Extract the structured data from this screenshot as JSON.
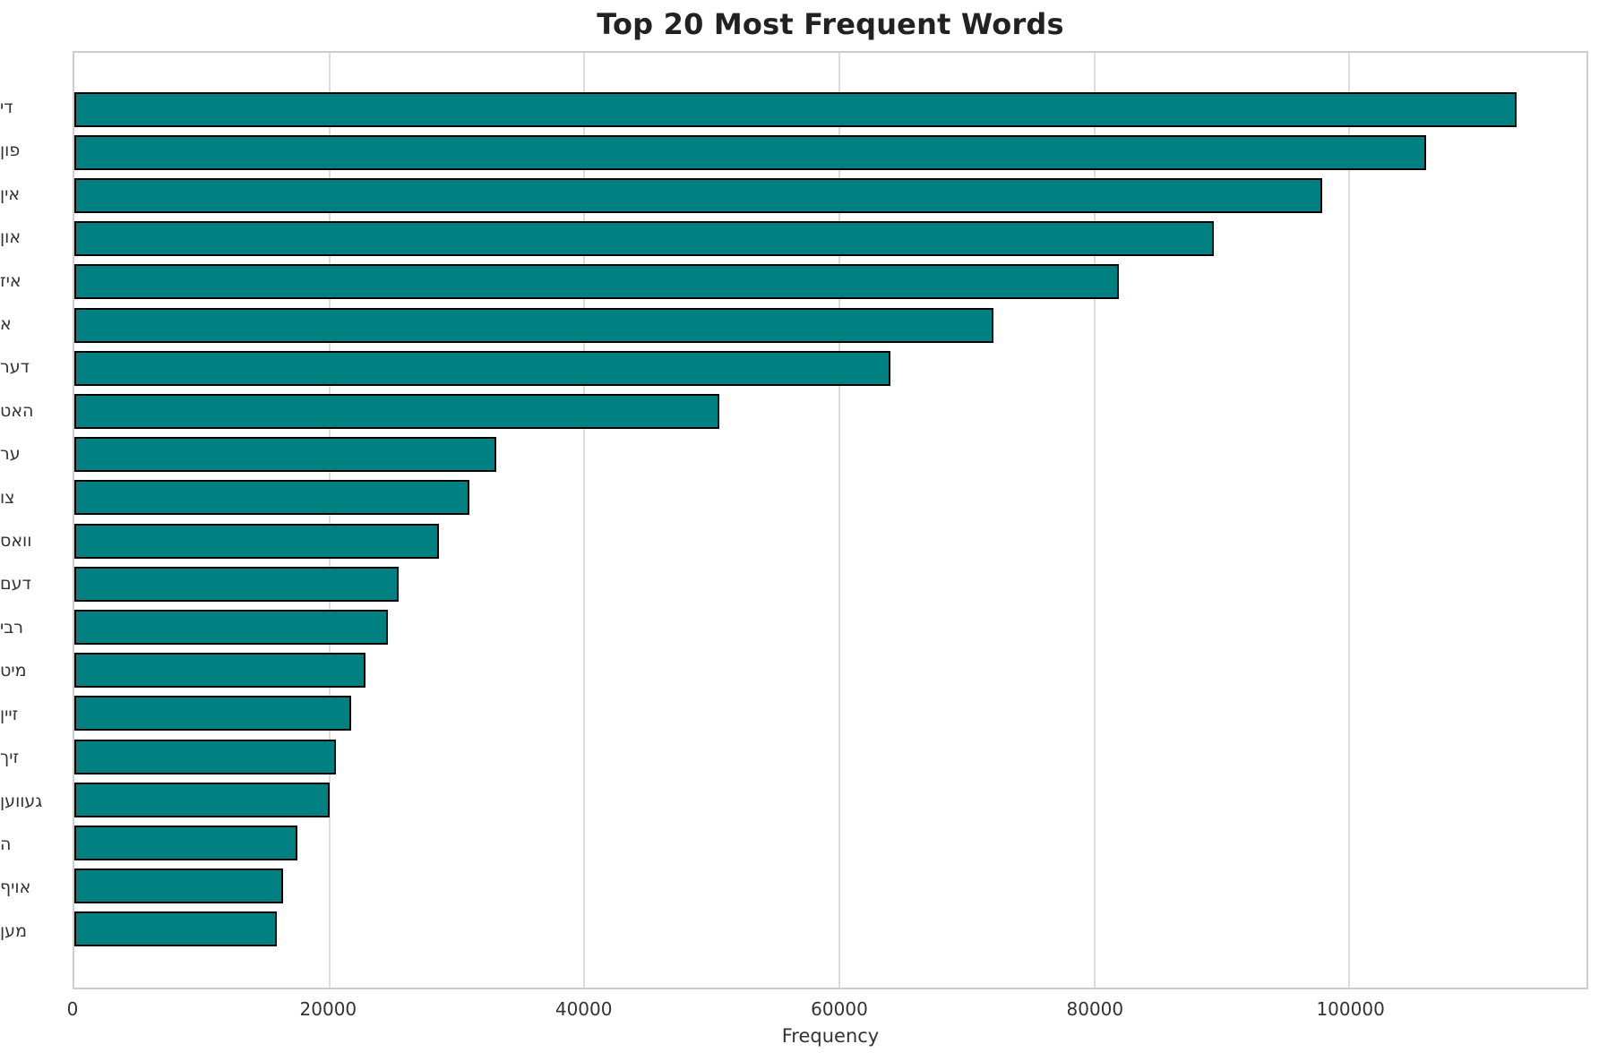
{
  "title": "Top 20 Most Frequent Words",
  "chart_data": {
    "type": "bar",
    "orientation": "horizontal",
    "title": "Top 20 Most Frequent Words",
    "xlabel": "Frequency",
    "ylabel": "",
    "categories": [
      "די",
      "פון",
      "אין",
      "און",
      "איז",
      "א",
      "דער",
      "האט",
      "ער",
      "צו",
      "וואס",
      "דעם",
      "רבי",
      "מיט",
      "זיין",
      "זיך",
      "געווען",
      "ה",
      "אויף",
      "מען"
    ],
    "values": [
      113100,
      106000,
      97900,
      89400,
      81900,
      72100,
      64000,
      50600,
      33100,
      31000,
      28600,
      25400,
      24600,
      22800,
      21700,
      20500,
      20000,
      17500,
      16400,
      15900
    ],
    "xticks": [
      0,
      20000,
      40000,
      60000,
      80000,
      100000
    ],
    "xtick_labels": [
      "0",
      "20000",
      "40000",
      "60000",
      "80000",
      "100000"
    ],
    "xlim": [
      0,
      118600
    ],
    "grid": true,
    "legend": false,
    "colors": {
      "bar_fill": "#008080",
      "bar_edge": "#000000",
      "gridline": "#dcdcdc",
      "spine": "#cdcdcd",
      "tick_text": "#333333",
      "title_text": "#222222",
      "background": "#ffffff"
    }
  }
}
